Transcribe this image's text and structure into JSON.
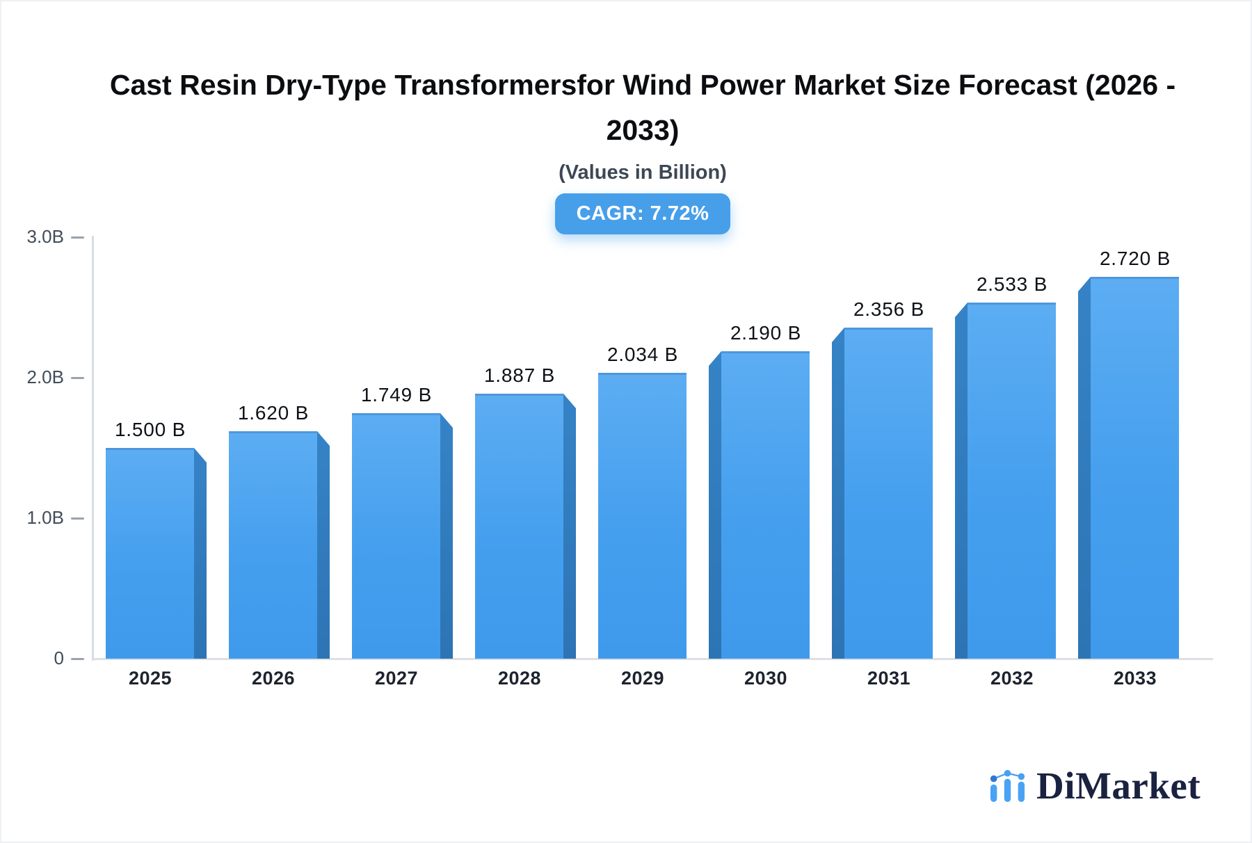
{
  "subtitle": "(Values in Billion)",
  "cagr_badge": "CAGR: 7.72%",
  "brand": {
    "name": "DiMarket"
  },
  "colors": {
    "bar_face_top": "#5cadf2",
    "bar_face_bottom": "#3f9aec",
    "bar_side": "#2f7ab8",
    "badge_bg": "#479fe9",
    "axis_line": "#d8dce2",
    "tick_label": "#414c59",
    "brand_blue": "#47a0f0",
    "brand_navy": "#1a2240"
  },
  "chart_data": {
    "type": "bar",
    "title": "Cast Resin Dry-Type Transformersfor Wind Power Market Size Forecast (2026 - 2033)",
    "subtitle": "(Values in Billion)",
    "annotation": "CAGR: 7.72%",
    "categories": [
      "2025",
      "2026",
      "2027",
      "2028",
      "2029",
      "2030",
      "2031",
      "2032",
      "2033"
    ],
    "values": [
      1.5,
      1.62,
      1.749,
      1.887,
      2.034,
      2.19,
      2.356,
      2.533,
      2.72
    ],
    "bar_labels": [
      "1.500 B",
      "1.620 B",
      "1.749 B",
      "1.887 B",
      "2.034 B",
      "2.190 B",
      "2.356 B",
      "2.533 B",
      "2.720 B"
    ],
    "unit": "Billion",
    "xlabel": "",
    "ylabel": "",
    "ylim": [
      0,
      3.0
    ],
    "yticks": [
      {
        "label": "3.0B",
        "value": 3.0
      },
      {
        "label": "2.0B",
        "value": 2.0
      },
      {
        "label": "1.0B",
        "value": 1.0
      },
      {
        "label": "0",
        "value": 0.0
      }
    ],
    "grid": false,
    "legend": false
  }
}
